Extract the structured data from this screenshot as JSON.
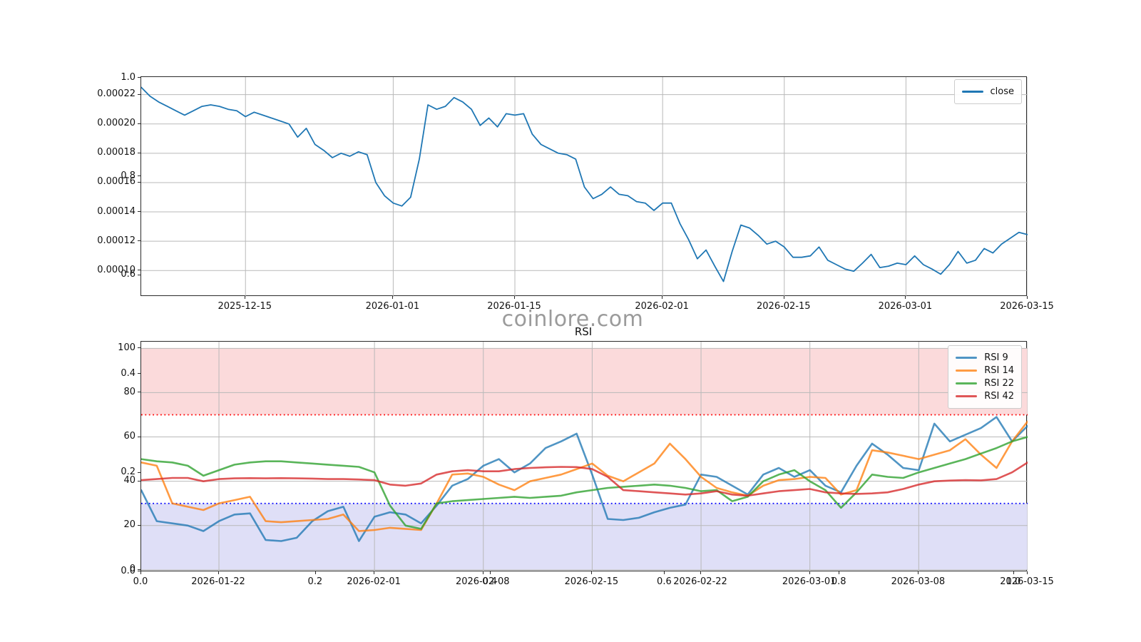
{
  "watermark": "coinlore.com",
  "chart_data": [
    {
      "type": "line",
      "title": "",
      "x_start": "2025-12-03",
      "x_end": "2026-03-15",
      "x_freq": "daily",
      "ylim": [
        8.21e-05,
        0.000232
      ],
      "grid": true,
      "legend_position": "upper right",
      "x_ticks": [
        {
          "label": "2025-12-15",
          "day": 12
        },
        {
          "label": "2026-01-01",
          "day": 29
        },
        {
          "label": "2026-01-15",
          "day": 43
        },
        {
          "label": "2026-02-01",
          "day": 60
        },
        {
          "label": "2026-02-15",
          "day": 74
        },
        {
          "label": "2026-03-01",
          "day": 88
        },
        {
          "label": "2026-03-15",
          "day": 102
        }
      ],
      "y_ticks": [
        {
          "label": "0.00022",
          "value": 0.00022
        },
        {
          "label": "0.00020",
          "value": 0.0002
        },
        {
          "label": "0.00018",
          "value": 0.00018
        },
        {
          "label": "0.00016",
          "value": 0.00016
        },
        {
          "label": "0.00014",
          "value": 0.00014
        },
        {
          "label": "0.00012",
          "value": 0.00012
        },
        {
          "label": "0.00010",
          "value": 0.0001
        }
      ],
      "ghost_y_ticks": [
        "1.0",
        "0.8",
        "0.6"
      ],
      "series": [
        {
          "name": "close",
          "color": "#1f77b4",
          "width": 1.8,
          "values": [
            0.000225,
            0.000219,
            0.000215,
            0.000212,
            0.000209,
            0.000206,
            0.000209,
            0.000212,
            0.000213,
            0.000212,
            0.00021,
            0.000209,
            0.000205,
            0.000208,
            0.000206,
            0.000204,
            0.000202,
            0.0002,
            0.000191,
            0.000197,
            0.000186,
            0.000182,
            0.000177,
            0.00018,
            0.000178,
            0.000181,
            0.000179,
            0.00016,
            0.000151,
            0.000146,
            0.000144,
            0.00015,
            0.000176,
            0.000213,
            0.00021,
            0.000212,
            0.000218,
            0.000215,
            0.00021,
            0.000199,
            0.000204,
            0.000198,
            0.000207,
            0.000206,
            0.000207,
            0.000193,
            0.000186,
            0.000183,
            0.00018,
            0.000179,
            0.000176,
            0.000157,
            0.000149,
            0.000152,
            0.000157,
            0.000152,
            0.000151,
            0.000147,
            0.000146,
            0.000141,
            0.000146,
            0.000146,
            0.000132,
            0.000121,
            0.000108,
            0.000114,
            0.000103,
            9.25e-05,
            0.000113,
            0.000131,
            0.000129,
            0.000124,
            0.000118,
            0.00012,
            0.000116,
            0.000109,
            0.000109,
            0.00011,
            0.000116,
            0.000107,
            0.000104,
            0.000101,
            9.95e-05,
            0.000105,
            0.000111,
            0.000102,
            0.000103,
            0.000105,
            0.000104,
            0.00011,
            0.000104,
            0.000101,
            9.75e-05,
            0.000104,
            0.000113,
            0.000105,
            0.000107,
            0.000115,
            0.000112,
            0.000118,
            0.000122,
            0.000126,
            0.0001245
          ]
        }
      ]
    },
    {
      "type": "line",
      "title": "RSI",
      "x_start": "2026-01-17",
      "x_end": "2026-03-15",
      "x_freq": "daily",
      "ylim": [
        -1,
        103
      ],
      "grid": true,
      "legend_position": "upper right",
      "x_ticks": [
        {
          "label": "2026-01-22",
          "day": 5
        },
        {
          "label": "2026-02-01",
          "day": 15
        },
        {
          "label": "2026-02-08",
          "day": 22
        },
        {
          "label": "2026-02-15",
          "day": 29
        },
        {
          "label": "2026-02-22",
          "day": 36
        },
        {
          "label": "2026-03-01",
          "day": 43
        },
        {
          "label": "2026-03-08",
          "day": 50
        },
        {
          "label": "2026-03-15",
          "day": 57
        }
      ],
      "y_ticks": [
        {
          "label": "100",
          "value": 100
        },
        {
          "label": "80",
          "value": 80
        },
        {
          "label": "60",
          "value": 60
        },
        {
          "label": "40",
          "value": 40
        },
        {
          "label": "20",
          "value": 20
        },
        {
          "label": "0",
          "value": 0
        }
      ],
      "ghost_y_ticks": [
        "0.4",
        "0.2",
        "0.0"
      ],
      "ghost_x_ticks": [
        "0.0",
        "0.2",
        "0.4",
        "0.6",
        "0.8",
        "1.0"
      ],
      "bands": [
        {
          "name": "overbought-band",
          "from": 70,
          "to": 100,
          "color": "#fbdadb"
        },
        {
          "name": "oversold-band",
          "from": 0,
          "to": 30,
          "color": "#dfdff7"
        }
      ],
      "threshold_lines": [
        {
          "name": "overbought-threshold",
          "value": 70,
          "color": "#ff0000",
          "style": "dotted"
        },
        {
          "name": "oversold-threshold",
          "value": 30,
          "color": "#0000ff",
          "style": "dotted"
        }
      ],
      "series": [
        {
          "name": "RSI 9",
          "color": "rgba(31,119,180,0.78)",
          "width": 2.6,
          "values": [
            36,
            22,
            21,
            20,
            17.5,
            22,
            25,
            25.5,
            13.5,
            13,
            14.5,
            22,
            26.5,
            28.5,
            13,
            24,
            26,
            25,
            21,
            29,
            38,
            41,
            47,
            50,
            44,
            48,
            55,
            58,
            61.5,
            43,
            23,
            22.5,
            23.5,
            26,
            28,
            29.5,
            43,
            42,
            38,
            34,
            43,
            46,
            42,
            45,
            38,
            35,
            47,
            57,
            52,
            46,
            45,
            66,
            58,
            61,
            64,
            69,
            58,
            65
          ]
        },
        {
          "name": "RSI 14",
          "color": "rgba(255,127,14,0.78)",
          "width": 2.6,
          "values": [
            48.5,
            47,
            30,
            28.5,
            27,
            30,
            31.5,
            33,
            22,
            21.5,
            22,
            22.5,
            23,
            25,
            17.5,
            18,
            19,
            18.5,
            18,
            30,
            43,
            43.5,
            42,
            38.5,
            36,
            40,
            41.5,
            43,
            45.5,
            48,
            42.5,
            40,
            44,
            48,
            57,
            50,
            42,
            37,
            35,
            33.5,
            38,
            40.5,
            41,
            42,
            41.5,
            34,
            36,
            54,
            53,
            51.5,
            50,
            52,
            54,
            59,
            52,
            46,
            58,
            67
          ]
        },
        {
          "name": "RSI 22",
          "color": "rgba(44,160,44,0.78)",
          "width": 2.6,
          "values": [
            50,
            49,
            48.5,
            47,
            42.5,
            45,
            47.5,
            48.5,
            49,
            49,
            48.5,
            48,
            47.5,
            47,
            46.5,
            44,
            29,
            20,
            18.5,
            30,
            31,
            31.5,
            32,
            32.5,
            33,
            32.5,
            33,
            33.5,
            35,
            36,
            37,
            37.5,
            38,
            38.5,
            38,
            37,
            35.5,
            36,
            31,
            33,
            40,
            43,
            45,
            40,
            36,
            28,
            35,
            43,
            42,
            41.5,
            44,
            46,
            48,
            50,
            52.5,
            55,
            58,
            60
          ]
        },
        {
          "name": "RSI 42",
          "color": "rgba(214,39,40,0.78)",
          "width": 2.6,
          "values": [
            40.5,
            41,
            41.5,
            41.5,
            40,
            41,
            41.3,
            41.4,
            41.3,
            41.4,
            41.3,
            41.2,
            41,
            41,
            40.8,
            40.5,
            38.5,
            38,
            39,
            43,
            44.5,
            45,
            44.5,
            44.5,
            45.5,
            46,
            46.3,
            46.5,
            46.4,
            45.5,
            42,
            36,
            35.5,
            35,
            34.5,
            34,
            34.5,
            35.5,
            34,
            33.5,
            34.5,
            35.5,
            36,
            36.5,
            35,
            34.5,
            34.3,
            34.5,
            35,
            36.5,
            38.5,
            40,
            40.3,
            40.5,
            40.4,
            41,
            44,
            48.5
          ]
        }
      ]
    }
  ]
}
